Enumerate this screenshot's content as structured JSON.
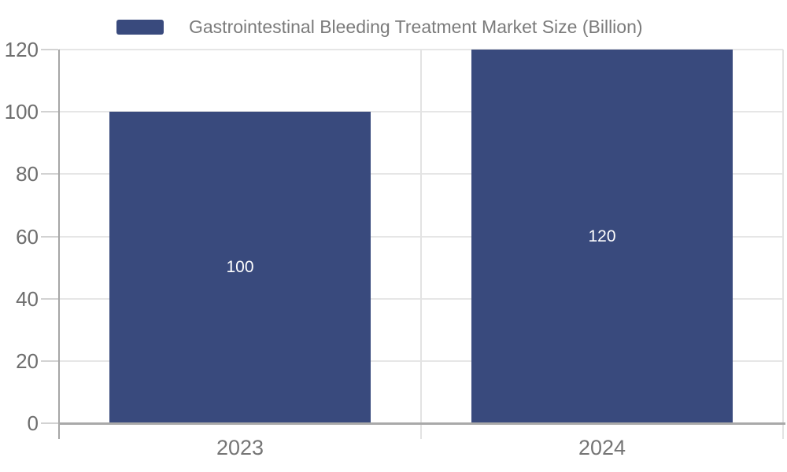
{
  "legend": {
    "series_label": "Gastrointestinal Bleeding Treatment Market Size (Billion)"
  },
  "chart_data": {
    "type": "bar",
    "title": "Gastrointestinal Bleeding Treatment Market Size (Billion)",
    "categories": [
      "2023",
      "2024"
    ],
    "values": [
      100,
      120
    ],
    "data_labels": [
      "100",
      "120"
    ],
    "xlabel": "",
    "ylabel": "",
    "ylim": [
      0,
      120
    ],
    "yticks": [
      0,
      20,
      40,
      60,
      80,
      100,
      120
    ],
    "grid": true,
    "legend_position": "top-center",
    "colors": {
      "bar": "#394A7D",
      "data_label": "#ffffff",
      "gridline": "#e6e6e6",
      "axis_line": "#a9a9a9",
      "tick": "#d2d2d2",
      "axis_text": "#6e6e6e",
      "legend_text": "#7b7b7b",
      "background": "#ffffff"
    }
  }
}
